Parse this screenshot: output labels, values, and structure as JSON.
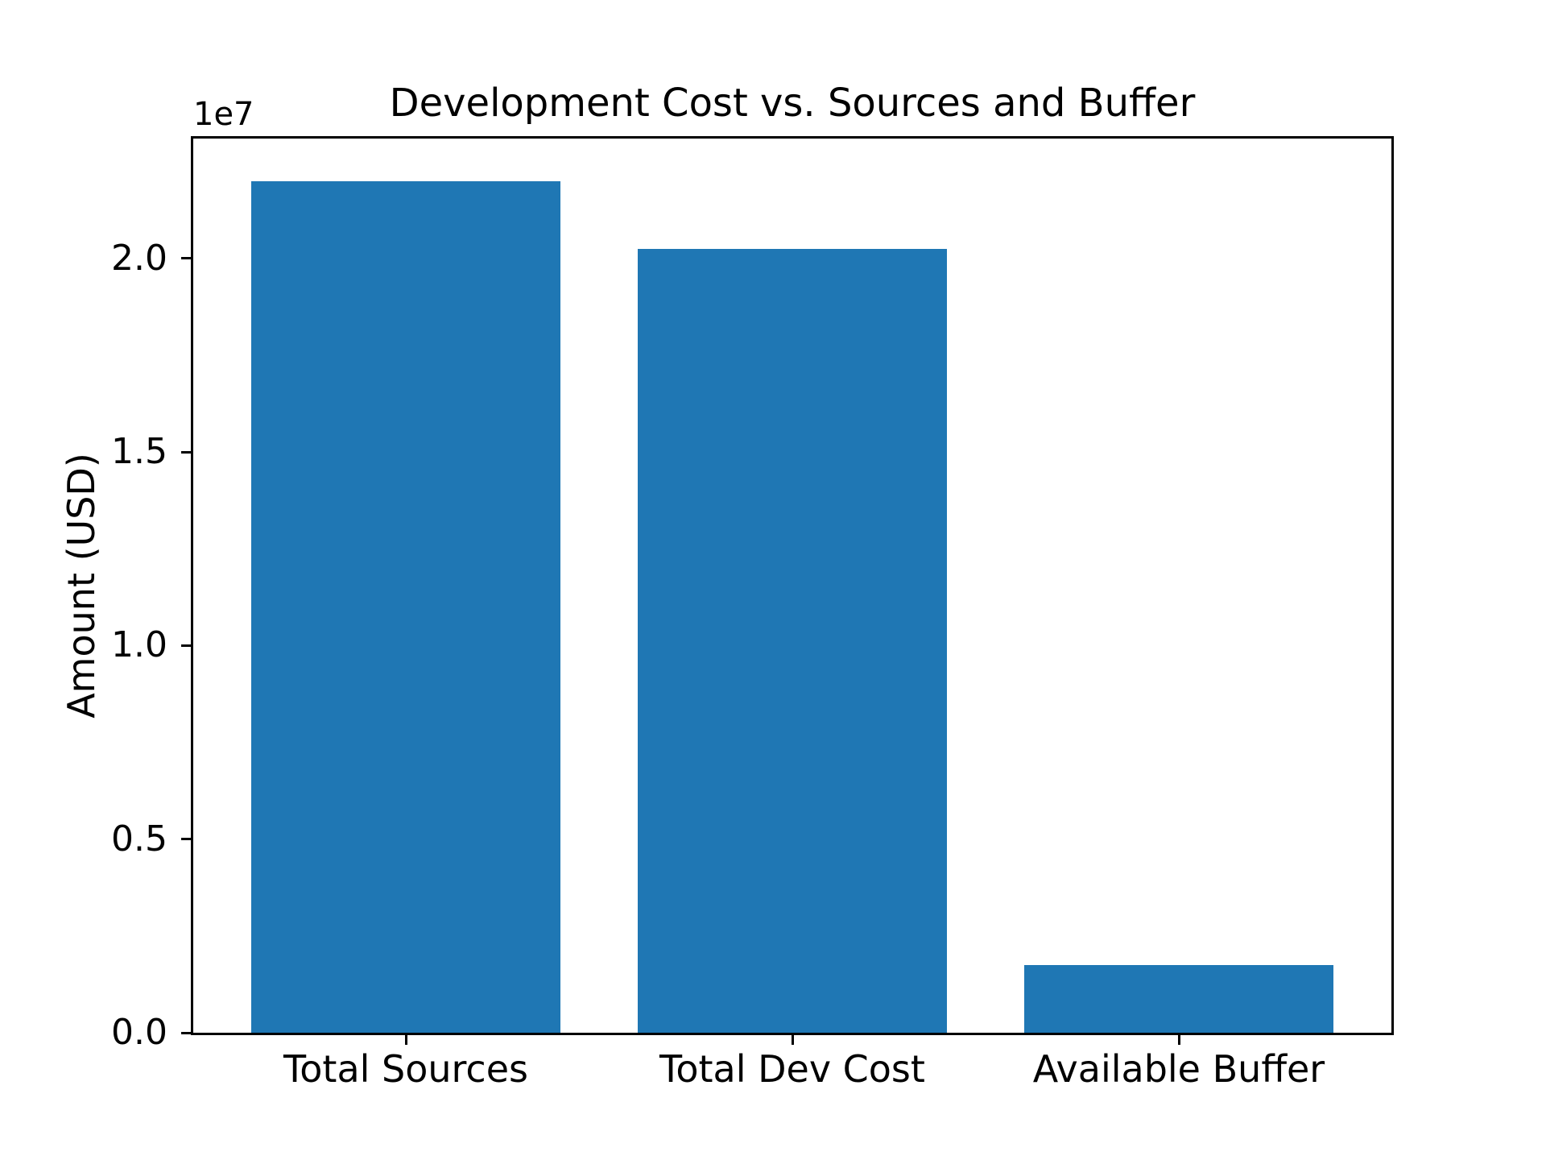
{
  "chart_data": {
    "type": "bar",
    "title": "Development Cost vs. Sources and Buffer",
    "xlabel": "",
    "ylabel": "Amount (USD)",
    "y_offset_label": "1e7",
    "categories": [
      "Total Sources",
      "Total Dev Cost",
      "Available Buffer"
    ],
    "values": [
      22000000,
      20250000,
      1750000
    ],
    "ylim": [
      0,
      23100000
    ],
    "ytick_values": [
      0,
      5000000,
      10000000,
      15000000,
      20000000
    ],
    "ytick_labels": [
      "0.0",
      "0.5",
      "1.0",
      "1.5",
      "2.0"
    ],
    "bar_color": "#1f77b4",
    "axis_color": "#000000",
    "background_color": "#ffffff",
    "grid": false,
    "legend": false
  }
}
